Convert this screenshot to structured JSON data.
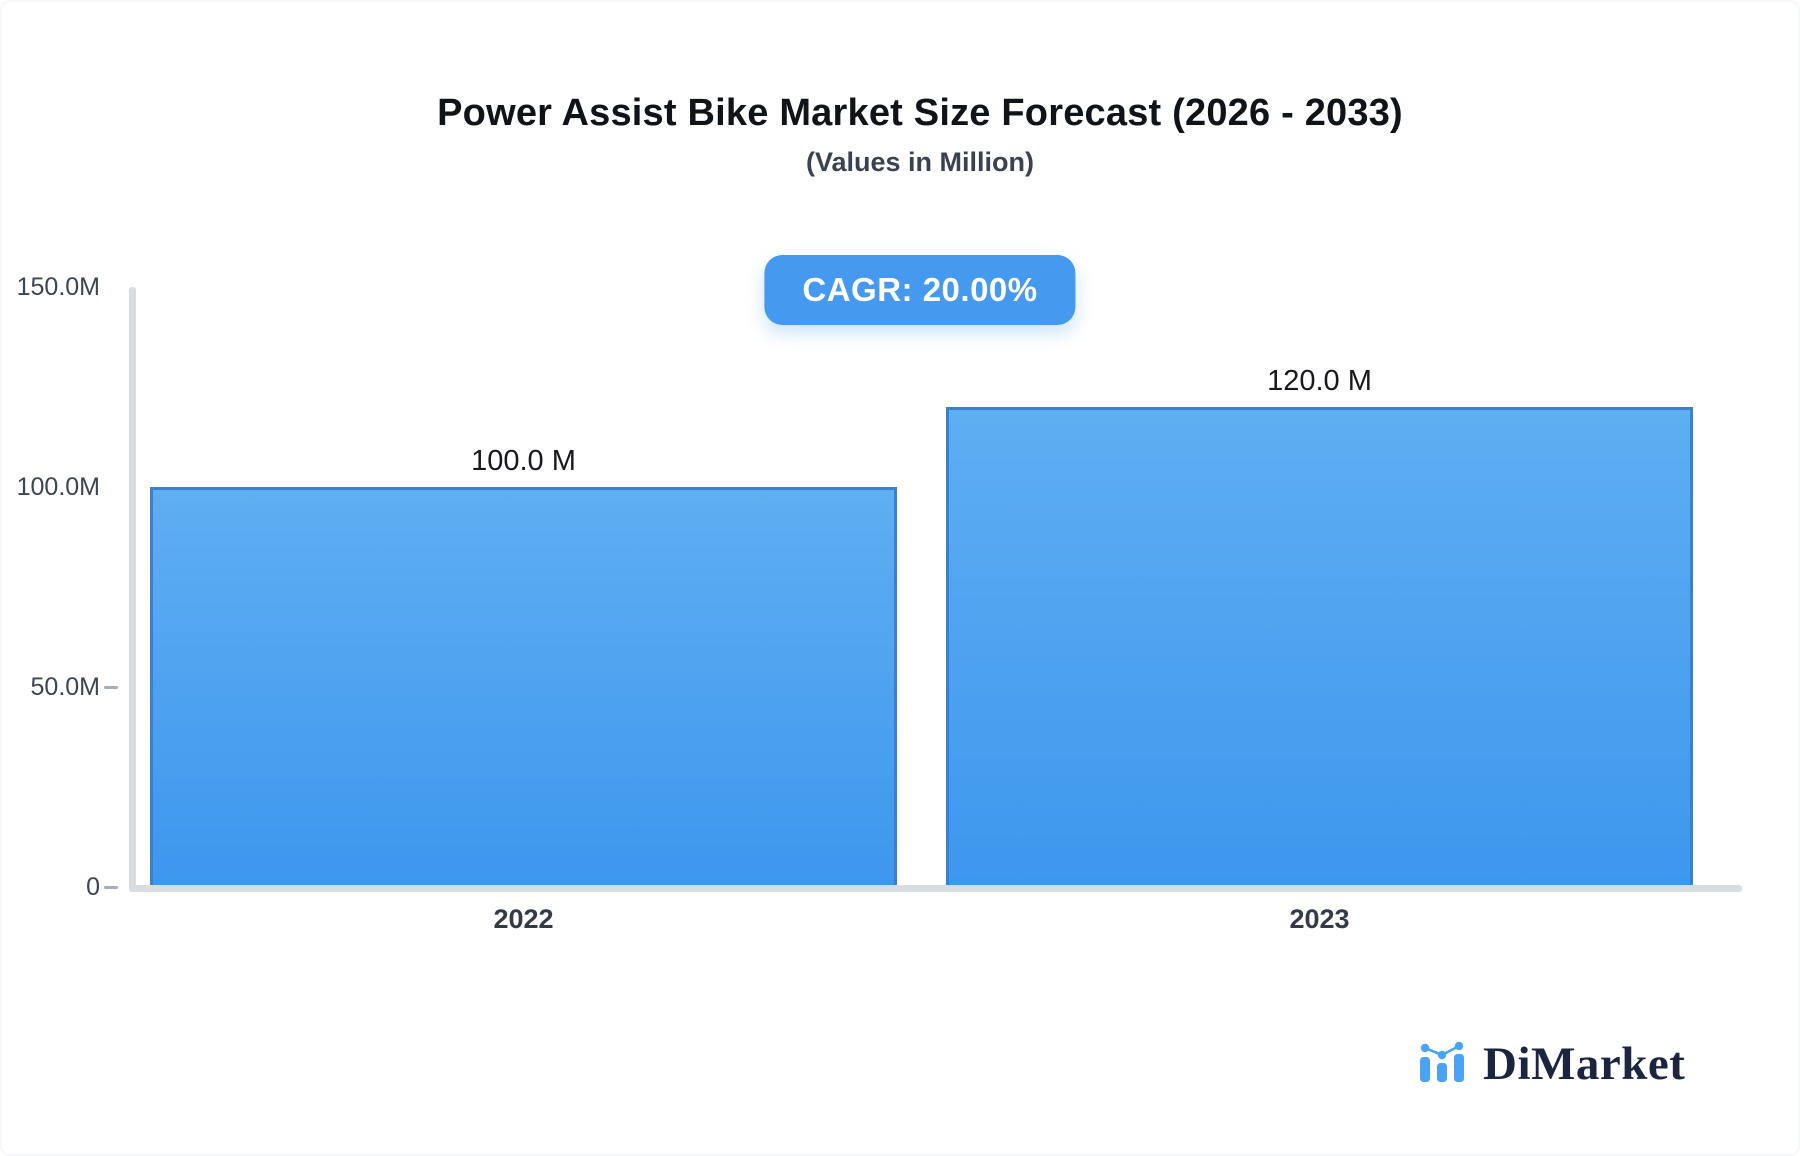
{
  "card": {
    "title": "Power Assist Bike Market Size Forecast (2026 - 2033)",
    "subtitle": "(Values in Million)",
    "cagr_badge": "CAGR: 20.00%"
  },
  "chart_data": {
    "type": "bar",
    "title": "Power Assist Bike Market Size Forecast (2026 - 2033)",
    "subtitle": "(Values in Million)",
    "cagr_percent": "20.00%",
    "unit": "Million",
    "categories": [
      "2022",
      "2023"
    ],
    "values": [
      100.0,
      120.0
    ],
    "value_labels": [
      "100.0 M",
      "120.0 M"
    ],
    "xlabel": "",
    "ylabel": "",
    "ylim": [
      0,
      150
    ],
    "ytick_labels": [
      "150.0M",
      "100.0M",
      "50.0M",
      "0"
    ],
    "ytick_values": [
      150,
      100,
      50,
      0
    ],
    "yticks_with_dash": [
      50,
      0
    ],
    "grid": false,
    "legend": false
  },
  "branding": {
    "logo_text": "DiMarket",
    "logo_icon": "mini-bar-chart-icon"
  },
  "colors": {
    "accent_blue": "#4599EE",
    "bar_fill_top": "#5EAEF2",
    "bar_fill_bottom": "#3E97EE",
    "bar_border": "#3780D2",
    "axis_line": "#D9DCE1",
    "tick": "#A9AFBA",
    "title_text": "#101318",
    "subtitle_text": "#3A4150",
    "axis_label": "#3D4452",
    "category_label": "#333B49",
    "value_label": "#17191D",
    "logo_blue": "#4AA3F5",
    "logo_text_color": "#1B2540",
    "background": "#FFFFFF"
  }
}
